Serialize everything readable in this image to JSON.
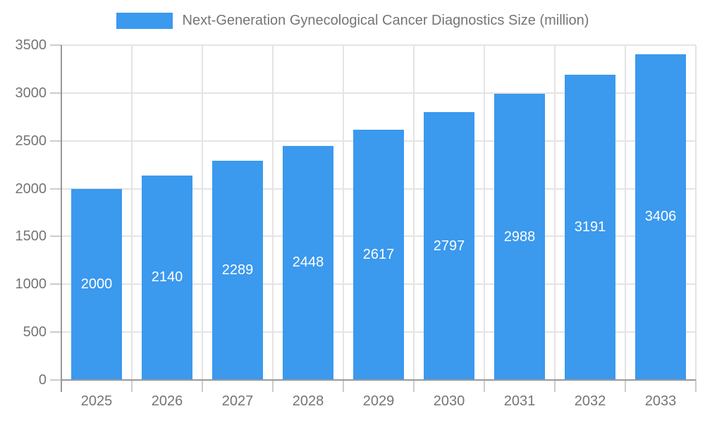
{
  "chart_data": {
    "type": "bar",
    "legend": "Next-Generation Gynecological Cancer Diagnostics Size (million)",
    "series_name": "Next-Generation Gynecological Cancer Diagnostics Size (million)",
    "categories": [
      "2025",
      "2026",
      "2027",
      "2028",
      "2029",
      "2030",
      "2031",
      "2032",
      "2033"
    ],
    "values": [
      2000,
      2140,
      2289,
      2448,
      2617,
      2797,
      2988,
      3191,
      3406
    ],
    "ylim": [
      0,
      3500
    ],
    "yticks": [
      0,
      500,
      1000,
      1500,
      2000,
      2500,
      3000,
      3500
    ],
    "grid": true,
    "legend_position": "top",
    "bar_labels_visible": true,
    "colors": {
      "bar": "#3B99EE",
      "bar_label": "#FFFFFF",
      "axis": "#999999",
      "tick": "#CCCCCC",
      "grid": "#E4E4E4",
      "text": "#757575",
      "background": "#FFFFFF"
    }
  }
}
